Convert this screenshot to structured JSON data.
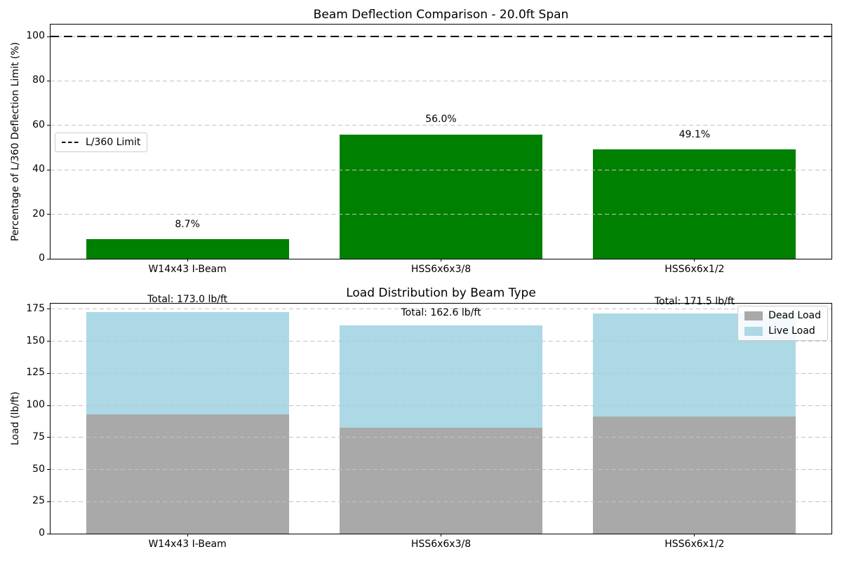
{
  "figure": {
    "background": "#ffffff"
  },
  "chart_data": [
    {
      "type": "bar",
      "title": "Beam Deflection Comparison - 20.0ft Span",
      "xlabel": "",
      "ylabel": "Percentage of L/360 Deflection Limit (%)",
      "categories": [
        "W14x43 I-Beam",
        "HSS6x6x3/8",
        "HSS6x6x1/2"
      ],
      "values": [
        8.7,
        56.0,
        49.1
      ],
      "bar_labels": [
        "8.7%",
        "56.0%",
        "49.1%"
      ],
      "bar_color": "#008000",
      "ylim": [
        0,
        105.4
      ],
      "yticks": [
        0,
        20,
        40,
        60,
        80,
        100
      ],
      "grid": true,
      "limit_line": {
        "value": 100,
        "label": "L/360 Limit",
        "color": "#000000",
        "style": "dashed"
      },
      "legend": {
        "position": "center-left",
        "items": [
          {
            "label": "L/360 Limit",
            "swatch": "dashed-line",
            "color": "#000000"
          }
        ]
      }
    },
    {
      "type": "stacked_bar",
      "title": "Load Distribution by Beam Type",
      "xlabel": "",
      "ylabel": "Load (lb/ft)",
      "categories": [
        "W14x43 I-Beam",
        "HSS6x6x3/8",
        "HSS6x6x1/2"
      ],
      "series": [
        {
          "name": "Dead Load",
          "color": "#a9a9a9",
          "values": [
            93.0,
            82.6,
            91.5
          ]
        },
        {
          "name": "Live Load",
          "color": "#add8e6",
          "values": [
            80.0,
            80.0,
            80.0
          ]
        }
      ],
      "totals": [
        173.0,
        162.6,
        171.5
      ],
      "total_labels": [
        "Total: 173.0 lb/ft",
        "Total: 162.6 lb/ft",
        "Total: 171.5 lb/ft"
      ],
      "ylim": [
        0,
        179.3
      ],
      "yticks": [
        0,
        25,
        50,
        75,
        100,
        125,
        150,
        175
      ],
      "grid": true,
      "legend": {
        "position": "upper-right",
        "items": [
          {
            "label": "Dead Load",
            "swatch": "patch",
            "color": "#a9a9a9"
          },
          {
            "label": "Live Load",
            "swatch": "patch",
            "color": "#add8e6"
          }
        ]
      }
    }
  ]
}
